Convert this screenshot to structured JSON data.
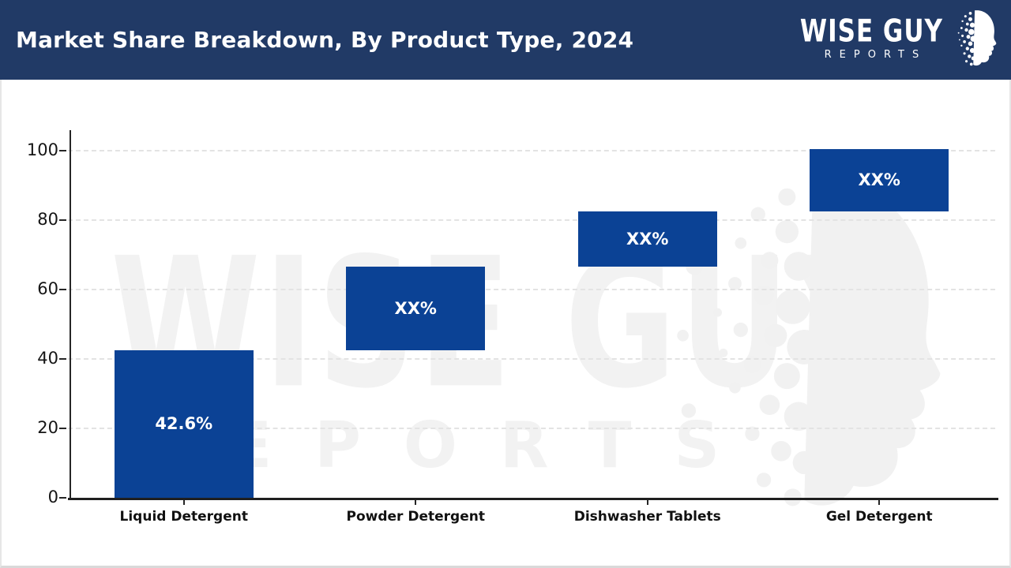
{
  "header": {
    "title": "Market Share Breakdown, By Product Type, 2024",
    "logo": {
      "line1": "WISE GUY",
      "line2": "REPORTS"
    }
  },
  "watermark": {
    "line1": "WISE GUY",
    "line2": "REPORTS"
  },
  "colors": {
    "header_bg": "#213a66",
    "bar_fill": "#0b4295",
    "bar_label": "#ffffff",
    "gridline": "#e3e3e3",
    "axis": "#262626",
    "watermark": "#f2f2f2"
  },
  "chart_data": {
    "type": "bar",
    "subtype": "waterfall",
    "title": "Market Share Breakdown, By Product Type, 2024",
    "categories": [
      "Liquid Detergent",
      "Powder Detergent",
      "Dishwasher Tablets",
      "Gel Detergent"
    ],
    "bars": [
      {
        "category": "Liquid Detergent",
        "base": 0,
        "top": 42.6,
        "label": "42.6%"
      },
      {
        "category": "Powder Detergent",
        "base": 42.6,
        "top": 66.6,
        "label": "XX%"
      },
      {
        "category": "Dishwasher Tablets",
        "base": 66.6,
        "top": 82.6,
        "label": "XX%"
      },
      {
        "category": "Gel Detergent",
        "base": 82.6,
        "top": 100.6,
        "label": "XX%"
      }
    ],
    "yticks": [
      0,
      20,
      40,
      60,
      80,
      100
    ],
    "ylim": [
      0,
      105.5
    ],
    "xlabel": "",
    "ylabel": "",
    "grid": "horizontal-dashed",
    "legend": "none"
  }
}
